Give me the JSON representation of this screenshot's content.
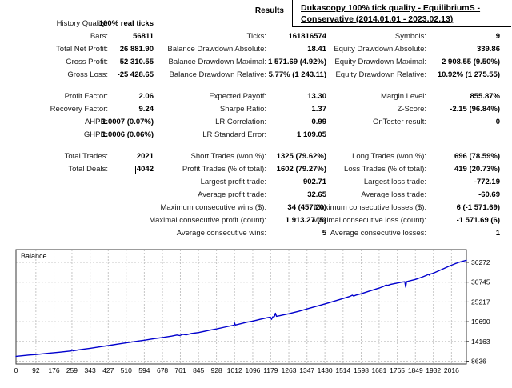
{
  "header": {
    "results_label": "Results",
    "title_line1": "Dukascopy 100% tick quality - EquilibriumS -",
    "title_line2": "Conservative  (2014.01.01 - 2023.02.13)"
  },
  "stats": {
    "caret": {
      "section": 2,
      "row": 1,
      "cell": 1
    },
    "sections": [
      {
        "rows": [
          [
            "History Quality:",
            "100% real ticks",
            "",
            "",
            "",
            ""
          ],
          [
            "Bars:",
            "56811",
            "Ticks:",
            "161816574",
            "Symbols:",
            "9"
          ],
          [
            "Total Net Profit:",
            "26 881.90",
            "Balance Drawdown Absolute:",
            "18.41",
            "Equity Drawdown Absolute:",
            "339.86"
          ],
          [
            "Gross Profit:",
            "52 310.55",
            "Balance Drawdown Maximal:",
            "1 571.69 (4.92%)",
            "Equity Drawdown Maximal:",
            "2 908.55 (9.50%)"
          ],
          [
            "Gross Loss:",
            "-25 428.65",
            "Balance Drawdown Relative:",
            "5.77% (1 243.11)",
            "Equity Drawdown Relative:",
            "10.92% (1 275.55)"
          ]
        ]
      },
      {
        "rows": [
          [
            "Profit Factor:",
            "2.06",
            "Expected Payoff:",
            "13.30",
            "Margin Level:",
            "855.87%"
          ],
          [
            "Recovery Factor:",
            "9.24",
            "Sharpe Ratio:",
            "1.37",
            "Z-Score:",
            "-2.15 (96.84%)"
          ],
          [
            "AHPR:",
            "1.0007 (0.07%)",
            "LR Correlation:",
            "0.99",
            "OnTester result:",
            "0"
          ],
          [
            "GHPR:",
            "1.0006 (0.06%)",
            "LR Standard Error:",
            "1 109.05",
            "",
            ""
          ]
        ]
      },
      {
        "rows": [
          [
            "Total Trades:",
            "2021",
            "Short Trades (won %):",
            "1325 (79.62%)",
            "Long Trades (won %):",
            "696 (78.59%)"
          ],
          [
            "Total Deals:",
            "4042",
            "Profit Trades (% of total):",
            "1602 (79.27%)",
            "Loss Trades (% of total):",
            "419 (20.73%)"
          ],
          [
            "",
            "",
            "Largest profit trade:",
            "902.71",
            "Largest loss trade:",
            "-772.19"
          ],
          [
            "",
            "",
            "Average profit trade:",
            "32.65",
            "Average loss trade:",
            "-60.69"
          ],
          [
            "",
            "",
            "Maximum consecutive wins ($):",
            "34 (457.20)",
            "Maximum consecutive losses ($):",
            "6 (-1 571.69)"
          ],
          [
            "",
            "",
            "Maximal consecutive profit (count):",
            "1 913.27 (5)",
            "Maximal consecutive loss (count):",
            "-1 571.69 (6)"
          ],
          [
            "",
            "",
            "Average consecutive wins:",
            "5",
            "Average consecutive losses:",
            "1"
          ]
        ]
      }
    ]
  },
  "chart_data": {
    "type": "line",
    "title": "Balance",
    "series_name": "Balance",
    "line_color": "#0000cd",
    "grid_color": "#c6c6c6",
    "border_color": "#3a3a3a",
    "label_color": "#000000",
    "xlim": [
      0,
      2085
    ],
    "ylim": [
      7853,
      39853
    ],
    "x_ticks": [
      0,
      92,
      176,
      259,
      343,
      427,
      510,
      594,
      678,
      761,
      845,
      928,
      1012,
      1096,
      1179,
      1263,
      1347,
      1430,
      1514,
      1598,
      1681,
      1765,
      1849,
      1932,
      2016
    ],
    "y_ticks": [
      36272,
      30745,
      25217,
      19690,
      14163,
      8636
    ],
    "points": [
      [
        0,
        10000
      ],
      [
        60,
        10350
      ],
      [
        92,
        10500
      ],
      [
        150,
        10850
      ],
      [
        200,
        11150
      ],
      [
        256,
        11500
      ],
      [
        259,
        11850
      ],
      [
        263,
        11550
      ],
      [
        300,
        11900
      ],
      [
        343,
        12250
      ],
      [
        400,
        12750
      ],
      [
        427,
        13000
      ],
      [
        470,
        13400
      ],
      [
        510,
        13750
      ],
      [
        560,
        14200
      ],
      [
        594,
        14500
      ],
      [
        640,
        14950
      ],
      [
        678,
        15250
      ],
      [
        720,
        15650
      ],
      [
        745,
        15950
      ],
      [
        758,
        15800
      ],
      [
        772,
        16150
      ],
      [
        788,
        16000
      ],
      [
        810,
        16350
      ],
      [
        845,
        16650
      ],
      [
        900,
        17350
      ],
      [
        928,
        17650
      ],
      [
        965,
        18150
      ],
      [
        1000,
        18600
      ],
      [
        1009,
        18700
      ],
      [
        1012,
        19300
      ],
      [
        1015,
        18750
      ],
      [
        1040,
        19100
      ],
      [
        1070,
        19550
      ],
      [
        1096,
        19850
      ],
      [
        1130,
        20350
      ],
      [
        1165,
        20800
      ],
      [
        1178,
        20950
      ],
      [
        1183,
        20350
      ],
      [
        1188,
        21000
      ],
      [
        1196,
        21100
      ],
      [
        1201,
        22050
      ],
      [
        1206,
        21200
      ],
      [
        1220,
        21350
      ],
      [
        1263,
        21900
      ],
      [
        1310,
        22600
      ],
      [
        1347,
        23250
      ],
      [
        1400,
        24150
      ],
      [
        1430,
        24650
      ],
      [
        1480,
        25550
      ],
      [
        1514,
        26150
      ],
      [
        1545,
        26750
      ],
      [
        1557,
        27100
      ],
      [
        1563,
        26850
      ],
      [
        1575,
        27150
      ],
      [
        1598,
        27500
      ],
      [
        1640,
        28300
      ],
      [
        1681,
        29100
      ],
      [
        1702,
        29550
      ],
      [
        1712,
        29950
      ],
      [
        1722,
        29850
      ],
      [
        1735,
        30150
      ],
      [
        1765,
        30500
      ],
      [
        1790,
        30800
      ],
      [
        1800,
        30850
      ],
      [
        1804,
        29350
      ],
      [
        1808,
        30900
      ],
      [
        1849,
        31500
      ],
      [
        1880,
        32150
      ],
      [
        1902,
        32700
      ],
      [
        1908,
        32950
      ],
      [
        1913,
        32700
      ],
      [
        1920,
        33050
      ],
      [
        1932,
        33250
      ],
      [
        1975,
        34400
      ],
      [
        2010,
        35350
      ],
      [
        2050,
        36300
      ],
      [
        2085,
        36882
      ]
    ]
  }
}
